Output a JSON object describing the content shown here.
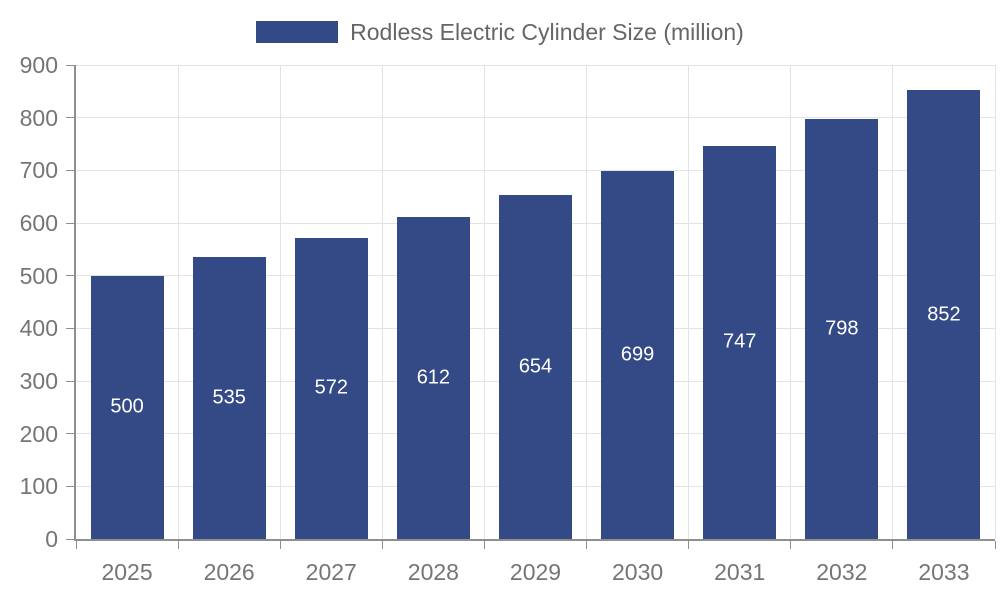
{
  "legend": {
    "label": "Rodless Electric Cylinder Size (million)"
  },
  "chart_data": {
    "type": "bar",
    "title": "Rodless Electric Cylinder Size (million)",
    "categories": [
      "2025",
      "2026",
      "2027",
      "2028",
      "2029",
      "2030",
      "2031",
      "2032",
      "2033"
    ],
    "values": [
      500,
      535,
      572,
      612,
      654,
      699,
      747,
      798,
      852
    ],
    "value_labels_shown": true,
    "value_label_position": "inside-center",
    "xlabel": "",
    "ylabel": "",
    "ylim": [
      0,
      900
    ],
    "yticks": [
      0,
      100,
      200,
      300,
      400,
      500,
      600,
      700,
      800,
      900
    ],
    "grid": true,
    "legend_position": "top-center",
    "colors": {
      "bar": "#344a87",
      "value_label": "#ffffff",
      "axis_label": "#757575",
      "legend_text": "#666666",
      "grid_line": "#e3e3e3",
      "axis_line": "#8f8f8f",
      "background": "#ffffff"
    }
  }
}
